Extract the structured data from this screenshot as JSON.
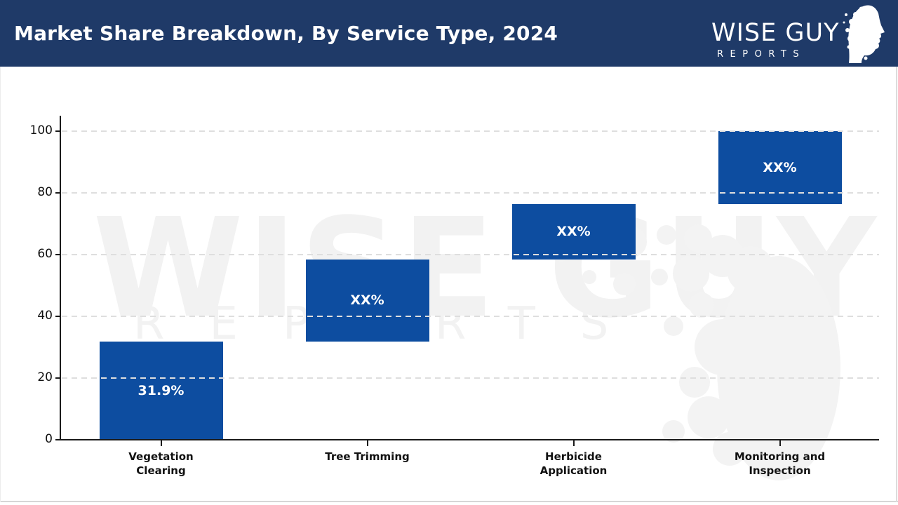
{
  "header": {
    "title": "Market Share Breakdown, By Service Type, 2024",
    "logo": {
      "name": "WISE GUY",
      "sub": "REPORTS"
    }
  },
  "watermark": {
    "name": "WISE GUY",
    "sub": "REPORTS"
  },
  "colors": {
    "header_bg": "#1f3a68",
    "bar": "#0d4da0",
    "bar_label": "#ffffff",
    "grid": "#dedede",
    "axis": "#1a1a1a",
    "watermark": "#f2f2f2"
  },
  "chart_data": {
    "type": "bar",
    "subtype": "waterfall",
    "title": "Market Share Breakdown, By Service Type, 2024",
    "categories": [
      "Vegetation\nClearing",
      "Tree Trimming",
      "Herbicide\nApplication",
      "Monitoring and\nInspection"
    ],
    "segments": [
      {
        "category": "Vegetation Clearing",
        "start": 0,
        "end": 31.9,
        "label": "31.9%"
      },
      {
        "category": "Tree Trimming",
        "start": 31.9,
        "end": 58.5,
        "label": "XX%"
      },
      {
        "category": "Herbicide Application",
        "start": 58.5,
        "end": 76.4,
        "label": "XX%"
      },
      {
        "category": "Monitoring and Inspection",
        "start": 76.4,
        "end": 100,
        "label": "XX%"
      }
    ],
    "ylim": [
      0,
      100
    ],
    "yticks": [
      0,
      20,
      40,
      60,
      80,
      100
    ],
    "xlabel": "",
    "ylabel": "",
    "grid": "horizontal-dashed",
    "legend": "none"
  }
}
